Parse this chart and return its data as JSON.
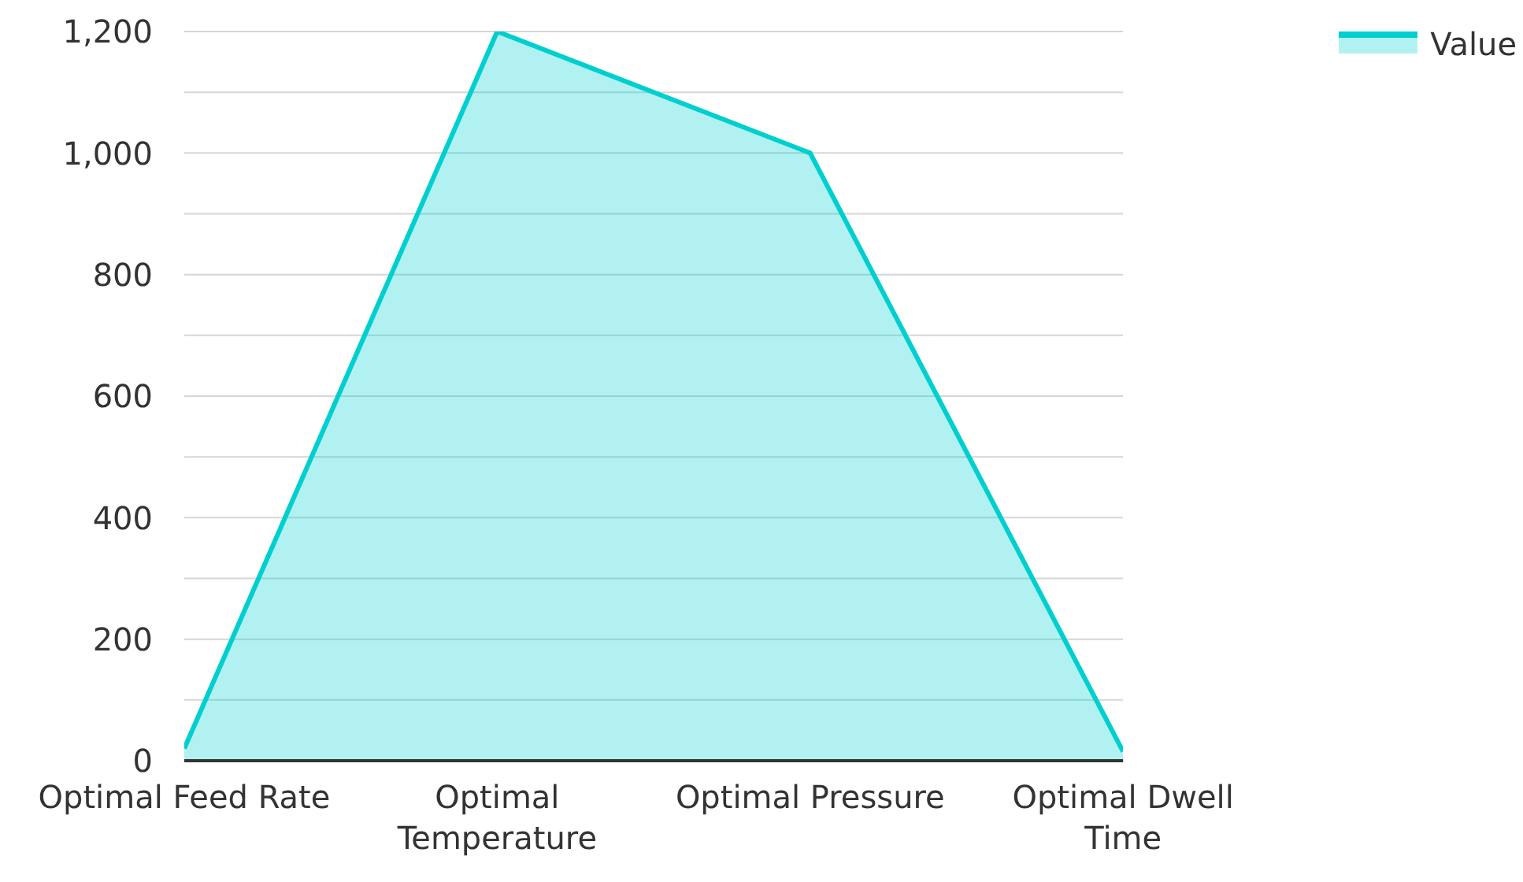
{
  "chart_data": {
    "type": "area",
    "categories": [
      "Optimal Feed Rate",
      "Optimal Temperature",
      "Optimal Pressure",
      "Optimal Dwell Time"
    ],
    "series": [
      {
        "name": "Value",
        "color": "#00cfcf",
        "values": [
          20,
          1200,
          1000,
          15
        ]
      }
    ],
    "ylim": [
      0,
      1200
    ],
    "yticks": [
      0,
      {
        "value": 100,
        "label": null
      },
      200,
      {
        "value": 300,
        "label": null
      },
      400,
      {
        "value": 500,
        "label": null
      },
      600,
      {
        "value": 700,
        "label": null
      },
      800,
      {
        "value": 900,
        "label": null
      },
      {
        "value": 1000,
        "label": "1,000"
      },
      {
        "value": 1100,
        "label": null
      },
      {
        "value": 1200,
        "label": "1,200"
      }
    ],
    "grid": "y",
    "legend": "top right",
    "marker": "none",
    "line_style": "solid"
  }
}
